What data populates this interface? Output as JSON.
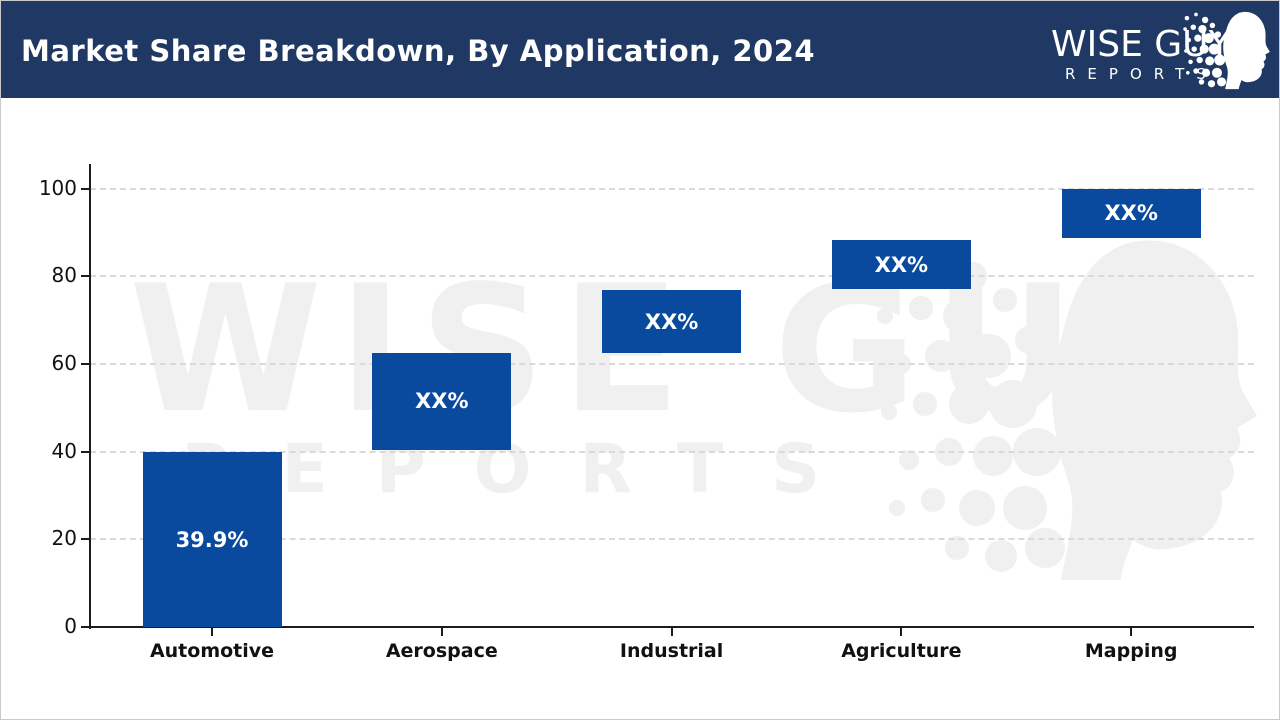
{
  "header": {
    "title": "Market Share Breakdown, By Application, 2024",
    "logo": {
      "line1": "WISE GUY",
      "line2": "REPORTS"
    }
  },
  "watermark": {
    "line1": "WISE GUY",
    "line2": "REPORTS"
  },
  "chart_data": {
    "type": "bar",
    "subtype": "floating-waterfall-segments",
    "title": "Market Share Breakdown, By Application, 2024",
    "xlabel": "",
    "ylabel": "",
    "categories": [
      "Automotive",
      "Aerospace",
      "Industrial",
      "Agriculture",
      "Mapping"
    ],
    "segments": [
      {
        "category": "Automotive",
        "start": 0,
        "end": 39.9,
        "label": "39.9%"
      },
      {
        "category": "Aerospace",
        "start": 40.4,
        "end": 62.5,
        "label": "XX%"
      },
      {
        "category": "Industrial",
        "start": 62.4,
        "end": 76.8,
        "label": "XX%"
      },
      {
        "category": "Agriculture",
        "start": 77.0,
        "end": 88.2,
        "label": "XX%"
      },
      {
        "category": "Mapping",
        "start": 88.6,
        "end": 100,
        "label": "XX%"
      }
    ],
    "y_ticks": [
      0,
      20,
      40,
      60,
      80,
      100
    ],
    "ylim": [
      0,
      105.6
    ],
    "grid": "dashed-horizontal",
    "legend": "none",
    "bar_color": "#094a9f",
    "bar_label_color": "#ffffff"
  },
  "colors": {
    "header_bg": "#1f3864",
    "bar": "#094a9f",
    "grid": "#d9d9d9",
    "axis": "#1c1c1c",
    "watermark": "#f0f0f0",
    "frame_border": "#c9c9c9"
  }
}
